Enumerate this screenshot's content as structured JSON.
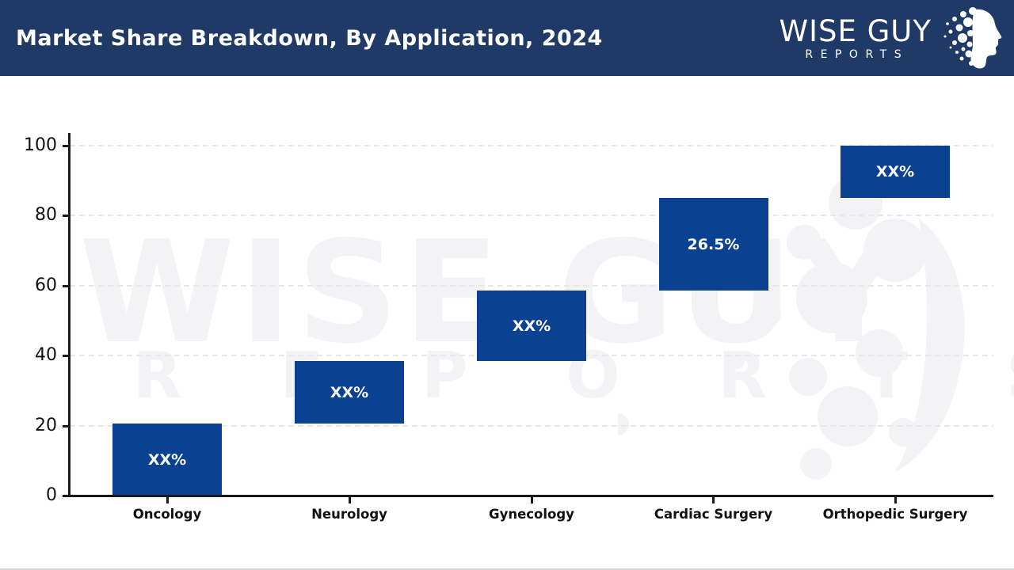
{
  "header": {
    "title": "Market Share Breakdown, By Application, 2024",
    "bg_color": "#1f3a66",
    "logo": {
      "line1": "WISE GUY",
      "line2": "REPORTS",
      "icon": "dotted-face-profile"
    }
  },
  "watermark": {
    "line1": "WISE GUY",
    "line2": "R E P O R T S"
  },
  "chart_data": {
    "type": "bar",
    "subtype": "waterfall",
    "title": "Market Share Breakdown, By Application, 2024",
    "categories": [
      "Oncology",
      "Neurology",
      "Gynecology",
      "Cardiac Surgery",
      "Orthopedic Surgery"
    ],
    "segments": [
      {
        "category": "Oncology",
        "start": 0,
        "end": 20.5,
        "label": "XX%"
      },
      {
        "category": "Neurology",
        "start": 20.5,
        "end": 38.5,
        "label": "XX%"
      },
      {
        "category": "Gynecology",
        "start": 38.5,
        "end": 58.5,
        "label": "XX%"
      },
      {
        "category": "Cardiac Surgery",
        "start": 58.5,
        "end": 85,
        "label": "26.5%"
      },
      {
        "category": "Orthopedic Surgery",
        "start": 85,
        "end": 100,
        "label": "XX%"
      }
    ],
    "y_ticks": [
      0,
      20,
      40,
      60,
      80,
      100
    ],
    "ylim": [
      0,
      100
    ],
    "xlabel": "",
    "ylabel": "",
    "grid": "horizontal-dashed",
    "legend": "none",
    "bar_color": "#0a4191",
    "bar_label_color": "#ffffff",
    "axis_color": "#1a1a1a"
  }
}
